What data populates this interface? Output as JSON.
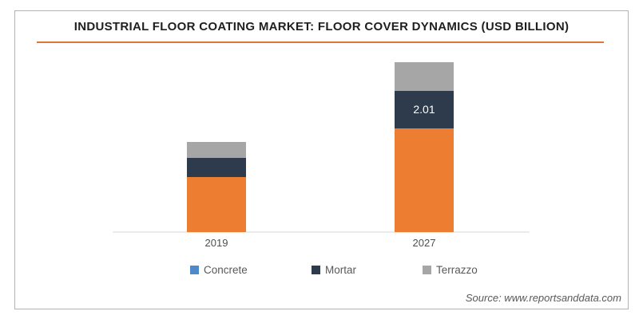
{
  "chart": {
    "title": "INDUSTRIAL FLOOR COATING MARKET: FLOOR COVER DYNAMICS (USD BILLION)",
    "source": "Source: www.reportsanddata.com",
    "accent_underline_color": "#df7539",
    "frame_border_color": "#b3b3b3",
    "axis_line_color": "#ebebeb"
  },
  "chart_data": {
    "type": "bar",
    "stacked": true,
    "title": "INDUSTRIAL FLOOR COATING MARKET: FLOOR COVER DYNAMICS (USD BILLION)",
    "value_unit": "USD Billion",
    "categories": [
      "2019",
      "2027"
    ],
    "series": [
      {
        "name": "Concrete",
        "values": [
          2.95,
          5.6
        ],
        "bar_color": "#ed7d31",
        "legend_color": "#4e8ac9",
        "data_labels": [
          null,
          null
        ]
      },
      {
        "name": "Mortar",
        "values": [
          1.02,
          2.01
        ],
        "bar_color": "#2e3b4c",
        "legend_color": "#2e3b4c",
        "data_labels": [
          null,
          "2.01"
        ]
      },
      {
        "name": "Terrazzo",
        "values": [
          0.9,
          1.55
        ],
        "bar_color": "#a6a6a6",
        "legend_color": "#a6a6a6",
        "data_labels": [
          null,
          null
        ]
      }
    ],
    "xlabel": "",
    "ylabel": "",
    "ylim": [
      0,
      10
    ],
    "grid": false,
    "y_axis_visible": false,
    "legend_position": "bottom"
  }
}
